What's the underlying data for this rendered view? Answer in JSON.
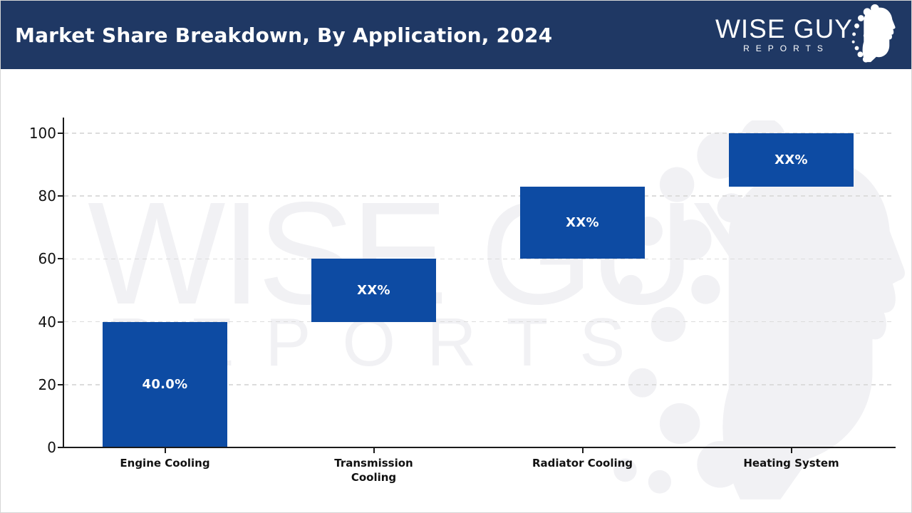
{
  "header": {
    "title": "Market Share Breakdown, By Application, 2024",
    "logo": {
      "wordmark": "WISE GUY",
      "subtext": "REPORTS"
    }
  },
  "watermark": {
    "line1": "WISE GUY",
    "line2": "REPORTS"
  },
  "chart_data": {
    "type": "bar",
    "subtype": "waterfall",
    "title": "Market Share Breakdown, By Application, 2024",
    "categories": [
      "Engine Cooling",
      "Transmission Cooling",
      "Radiator Cooling",
      "Heating System"
    ],
    "series": [
      {
        "name": "Market Share (%)",
        "segments": [
          {
            "category": "Engine Cooling",
            "start": 0,
            "end": 40,
            "value": 40,
            "label": "40.0%"
          },
          {
            "category": "Transmission Cooling",
            "start": 40,
            "end": 60,
            "value": 20,
            "label": "XX%"
          },
          {
            "category": "Radiator Cooling",
            "start": 60,
            "end": 83,
            "value": 23,
            "label": "XX%"
          },
          {
            "category": "Heating System",
            "start": 83,
            "end": 100,
            "value": 17,
            "label": "XX%"
          }
        ]
      }
    ],
    "xlabel": "",
    "ylabel": "",
    "ylim": [
      0,
      100
    ],
    "yticks": [
      0,
      20,
      40,
      60,
      80,
      100
    ],
    "grid": "horizontal-dashed",
    "legend": null,
    "colors": {
      "bar": "#0d4ba3",
      "bar_label": "#ffffff",
      "header_bg": "#1f3864",
      "header_text": "#ffffff",
      "grid": "#dcdcdc",
      "axis": "#1a1a1a",
      "watermark": "#f1f1f4"
    }
  }
}
